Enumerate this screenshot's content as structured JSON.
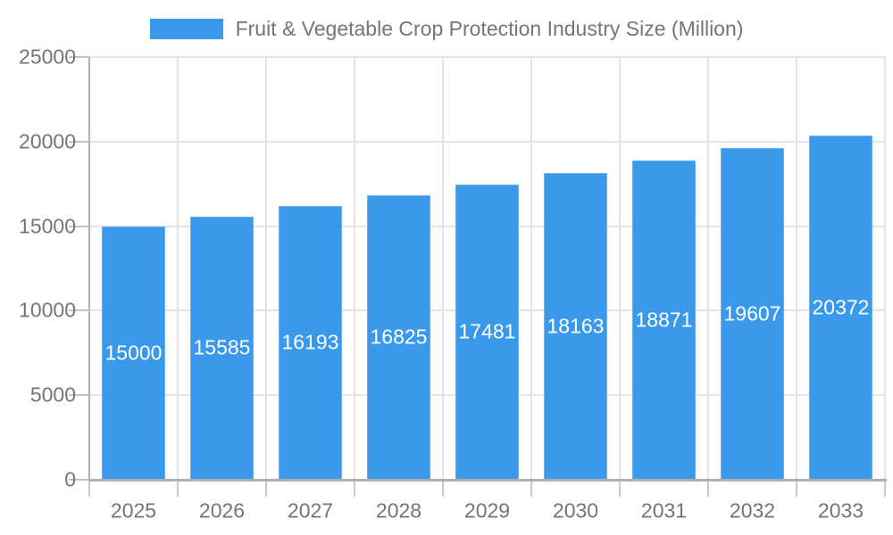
{
  "chart_data": {
    "type": "bar",
    "title": "Fruit & Vegetable Crop Protection Industry Size (Million)",
    "categories": [
      "2025",
      "2026",
      "2027",
      "2028",
      "2029",
      "2030",
      "2031",
      "2032",
      "2033"
    ],
    "values": [
      15000,
      15585,
      16193,
      16825,
      17481,
      18163,
      18871,
      19607,
      20372
    ],
    "xlabel": "",
    "ylabel": "",
    "ylim": [
      0,
      25000
    ],
    "yticks": [
      0,
      5000,
      10000,
      15000,
      20000,
      25000
    ],
    "grid": true,
    "legend_position": "top",
    "bar_color": "#3B99EC",
    "value_label_color": "#FFFFFF",
    "axis_text_color": "#757575"
  }
}
